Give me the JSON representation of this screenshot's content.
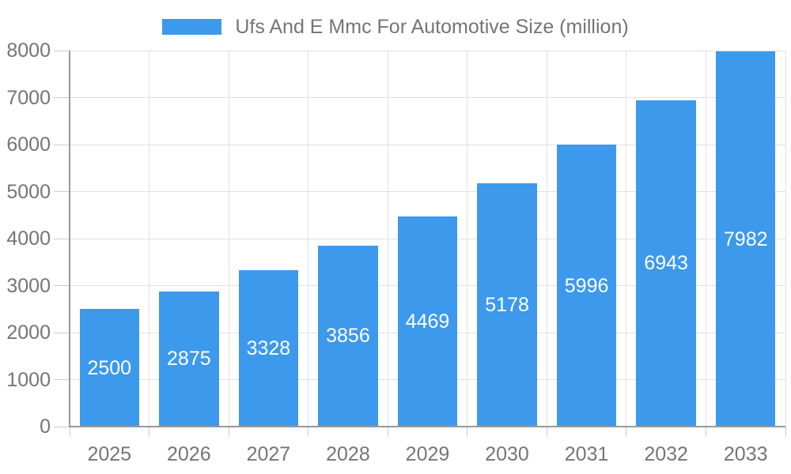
{
  "chart_data": {
    "type": "bar",
    "title": "Ufs And E Mmc For Automotive Size (million)",
    "categories": [
      "2025",
      "2026",
      "2027",
      "2028",
      "2029",
      "2030",
      "2031",
      "2032",
      "2033"
    ],
    "values": [
      2500,
      2875,
      3328,
      3856,
      4469,
      5178,
      5996,
      6943,
      7982
    ],
    "xlabel": "",
    "ylabel": "",
    "ylim": [
      0,
      8000
    ],
    "ytick_interval": 1000,
    "ytick_labels": [
      "0",
      "1000",
      "2000",
      "3000",
      "4000",
      "5000",
      "6000",
      "7000",
      "8000"
    ],
    "grid": true,
    "legend_position": "top",
    "bar_color": "#3d99ec",
    "value_label_color": "#ffffff",
    "axis_text_color": "#757575",
    "grid_color": "#e0e0e0",
    "tick_color": "#cccccc",
    "axis_line_color": "#999999",
    "background_color": "#ffffff"
  }
}
